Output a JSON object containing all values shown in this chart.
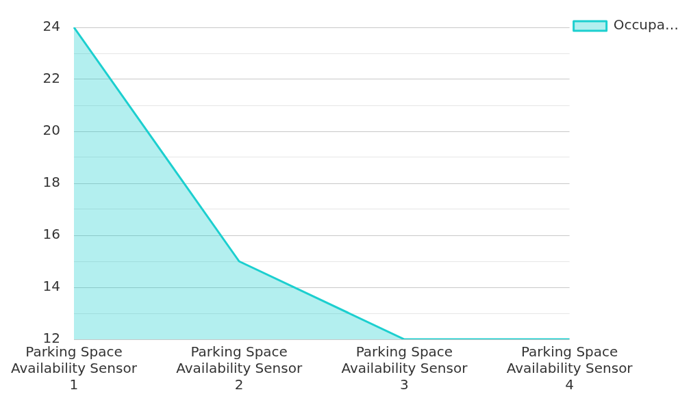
{
  "chart_data": {
    "type": "area",
    "categories": [
      "Parking Space Availability Sensor 1",
      "Parking Space Availability Sensor 2",
      "Parking Space Availability Sensor 3",
      "Parking Space Availability Sensor 4"
    ],
    "series": [
      {
        "name": "Occupa…",
        "color": "#1ccfcf",
        "values": [
          24,
          15,
          12,
          12
        ]
      }
    ],
    "ylim": [
      12,
      24
    ],
    "yticks": [
      12,
      {
        "value": 13,
        "label": null
      },
      14,
      {
        "value": 15,
        "label": null
      },
      16,
      {
        "value": 17,
        "label": null
      },
      18,
      {
        "value": 19,
        "label": null
      },
      20,
      {
        "value": 21,
        "label": null
      },
      22,
      {
        "value": 23,
        "label": null
      },
      24
    ],
    "grid": "y",
    "legend": "top right",
    "marker": "none",
    "line_style": "solid"
  }
}
